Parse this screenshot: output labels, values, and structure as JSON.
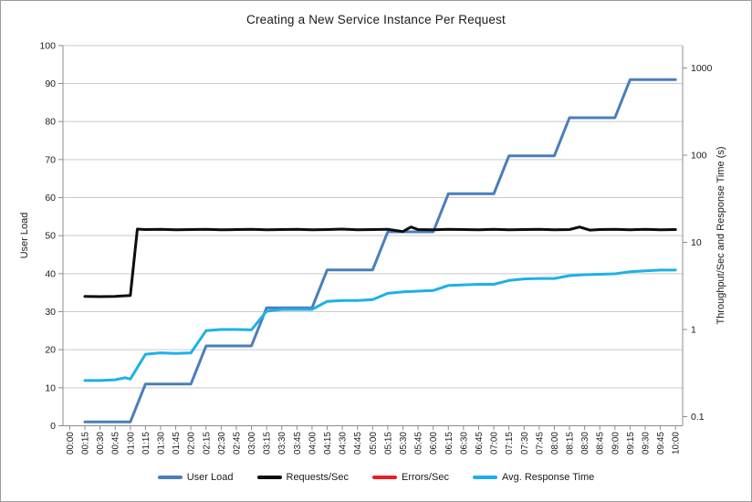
{
  "window": {
    "title": "Creating a New Service Instance Per Request"
  },
  "chart_data": {
    "type": "line",
    "title": "Creating a New Service Instance Per Request",
    "grid": "horizontal-only",
    "legend_position": "bottom",
    "x_axis": {
      "tick_interval_minutes": 15,
      "tick_labels": [
        "00:00",
        "00:15",
        "00:30",
        "00:45",
        "01:00",
        "01:15",
        "01:30",
        "01:45",
        "02:00",
        "02:15",
        "02:30",
        "02:45",
        "03:00",
        "03:15",
        "03:30",
        "03:45",
        "04:00",
        "04:15",
        "04:30",
        "04:45",
        "05:00",
        "05:15",
        "05:30",
        "05:45",
        "06:00",
        "06:15",
        "06:30",
        "06:45",
        "07:00",
        "07:15",
        "07:30",
        "07:45",
        "08:00",
        "08:15",
        "08:30",
        "08:45",
        "09:00",
        "09:15",
        "09:30",
        "09:45",
        "10:00"
      ]
    },
    "left_axis": {
      "label": "User Load",
      "min": 0,
      "max": 100,
      "ticks": [
        0,
        10,
        20,
        30,
        40,
        50,
        60,
        70,
        80,
        90,
        100
      ]
    },
    "right_axis": {
      "label": "Throughput/Sec and Response Time (s)",
      "scale": "log",
      "ticks": [
        0.1,
        1,
        10,
        100,
        1000
      ]
    },
    "series": [
      {
        "name": "User Load",
        "axis": "left",
        "color": "#4a7ebb",
        "points": [
          [
            15,
            1
          ],
          [
            60,
            1
          ],
          [
            75,
            11
          ],
          [
            120,
            11
          ],
          [
            135,
            21
          ],
          [
            180,
            21
          ],
          [
            195,
            31
          ],
          [
            240,
            31
          ],
          [
            255,
            41
          ],
          [
            300,
            41
          ],
          [
            315,
            51
          ],
          [
            360,
            51
          ],
          [
            375,
            61
          ],
          [
            420,
            61
          ],
          [
            435,
            71
          ],
          [
            480,
            71
          ],
          [
            495,
            81
          ],
          [
            540,
            81
          ],
          [
            555,
            91
          ],
          [
            600,
            91
          ]
        ]
      },
      {
        "name": "Requests/Sec",
        "axis": "right",
        "color": "#0d0d0d",
        "points": [
          [
            15,
            2.4
          ],
          [
            30,
            2.38
          ],
          [
            45,
            2.4
          ],
          [
            60,
            2.45
          ],
          [
            67,
            14.2
          ],
          [
            75,
            14.0
          ],
          [
            90,
            14.1
          ],
          [
            105,
            13.9
          ],
          [
            120,
            14.0
          ],
          [
            135,
            14.1
          ],
          [
            150,
            13.9
          ],
          [
            165,
            14.0
          ],
          [
            180,
            14.1
          ],
          [
            195,
            13.9
          ],
          [
            210,
            14.0
          ],
          [
            225,
            14.1
          ],
          [
            240,
            13.9
          ],
          [
            255,
            14.0
          ],
          [
            270,
            14.2
          ],
          [
            285,
            13.9
          ],
          [
            300,
            14.0
          ],
          [
            315,
            14.1
          ],
          [
            330,
            13.3
          ],
          [
            338,
            15.0
          ],
          [
            345,
            14.0
          ],
          [
            360,
            13.9
          ],
          [
            375,
            14.1
          ],
          [
            390,
            14.0
          ],
          [
            405,
            13.9
          ],
          [
            420,
            14.1
          ],
          [
            435,
            13.9
          ],
          [
            450,
            14.0
          ],
          [
            465,
            14.1
          ],
          [
            480,
            13.9
          ],
          [
            495,
            14.0
          ],
          [
            505,
            15.0
          ],
          [
            515,
            13.8
          ],
          [
            525,
            14.0
          ],
          [
            540,
            14.1
          ],
          [
            555,
            13.9
          ],
          [
            570,
            14.1
          ],
          [
            585,
            13.9
          ],
          [
            600,
            14.0
          ]
        ]
      },
      {
        "name": "Errors/Sec",
        "axis": "right",
        "color": "#ed1c24",
        "points": []
      },
      {
        "name": "Avg. Response Time",
        "axis": "right",
        "color": "#1fb0e6",
        "points": [
          [
            15,
            0.26
          ],
          [
            30,
            0.26
          ],
          [
            45,
            0.265
          ],
          [
            55,
            0.28
          ],
          [
            60,
            0.27
          ],
          [
            75,
            0.52
          ],
          [
            90,
            0.54
          ],
          [
            105,
            0.53
          ],
          [
            120,
            0.54
          ],
          [
            135,
            0.97
          ],
          [
            150,
            1.0
          ],
          [
            165,
            1.0
          ],
          [
            180,
            0.99
          ],
          [
            195,
            1.62
          ],
          [
            210,
            1.7
          ],
          [
            225,
            1.7
          ],
          [
            240,
            1.7
          ],
          [
            255,
            2.1
          ],
          [
            270,
            2.15
          ],
          [
            285,
            2.15
          ],
          [
            300,
            2.2
          ],
          [
            315,
            2.6
          ],
          [
            330,
            2.7
          ],
          [
            345,
            2.75
          ],
          [
            360,
            2.8
          ],
          [
            375,
            3.2
          ],
          [
            390,
            3.25
          ],
          [
            405,
            3.3
          ],
          [
            420,
            3.3
          ],
          [
            435,
            3.65
          ],
          [
            450,
            3.8
          ],
          [
            465,
            3.85
          ],
          [
            480,
            3.85
          ],
          [
            495,
            4.15
          ],
          [
            510,
            4.25
          ],
          [
            525,
            4.3
          ],
          [
            540,
            4.35
          ],
          [
            555,
            4.6
          ],
          [
            570,
            4.7
          ],
          [
            585,
            4.8
          ],
          [
            600,
            4.8
          ]
        ]
      }
    ]
  }
}
